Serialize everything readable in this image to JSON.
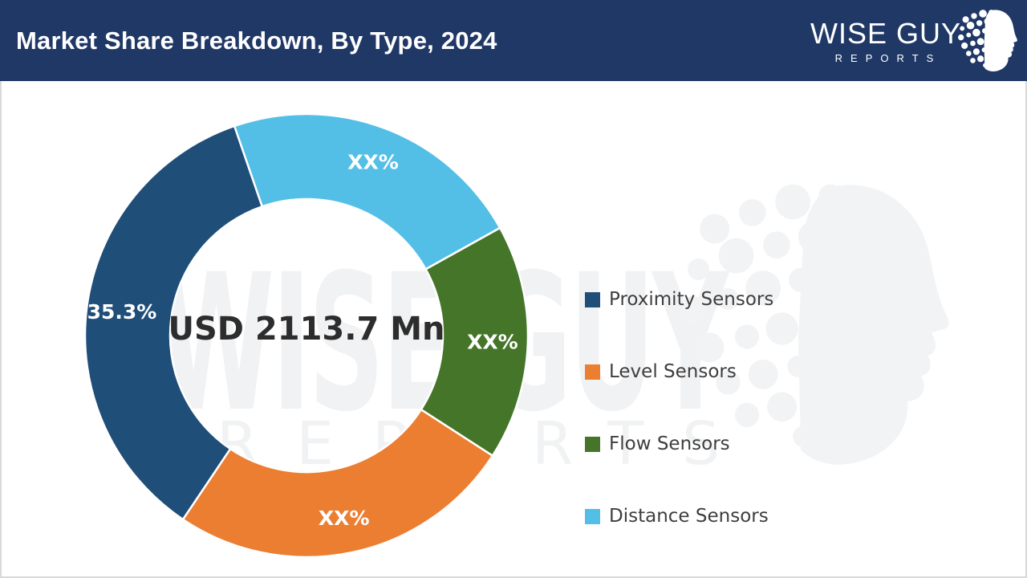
{
  "header": {
    "title": "Market Share Breakdown, By Type, 2024",
    "logo": {
      "line1": "WISE GUY",
      "line2": "REPORTS"
    }
  },
  "watermark": {
    "line1": "WISE GUY",
    "line2": "REPORTS"
  },
  "chart_data": {
    "type": "donut",
    "title": "Market Share Breakdown, By Type, 2024",
    "center_label": "USD 2113.7 Mn",
    "start_angle_deg": -19,
    "legend_position": "right",
    "segments": [
      {
        "label": "Distance Sensors",
        "value_pct": 22.2,
        "display_label": "XX%",
        "color": "#53bfe6"
      },
      {
        "label": "Flow Sensors",
        "value_pct": 17.2,
        "display_label": "XX%",
        "color": "#447528"
      },
      {
        "label": "Level Sensors",
        "value_pct": 25.3,
        "display_label": "XX%",
        "color": "#ec7e32"
      },
      {
        "label": "Proximity Sensors",
        "value_pct": 35.3,
        "display_label": "35.3%",
        "color": "#1f4e79"
      }
    ],
    "legend_order": [
      3,
      2,
      1,
      0
    ]
  },
  "colors": {
    "header_bg": "#203866",
    "content_border": "#d9d9d9",
    "legend_text": "#3e3e3e",
    "center_text": "#2d2d2d",
    "slice_label_text": "#ffffff",
    "watermark": "#f1f2f3"
  }
}
